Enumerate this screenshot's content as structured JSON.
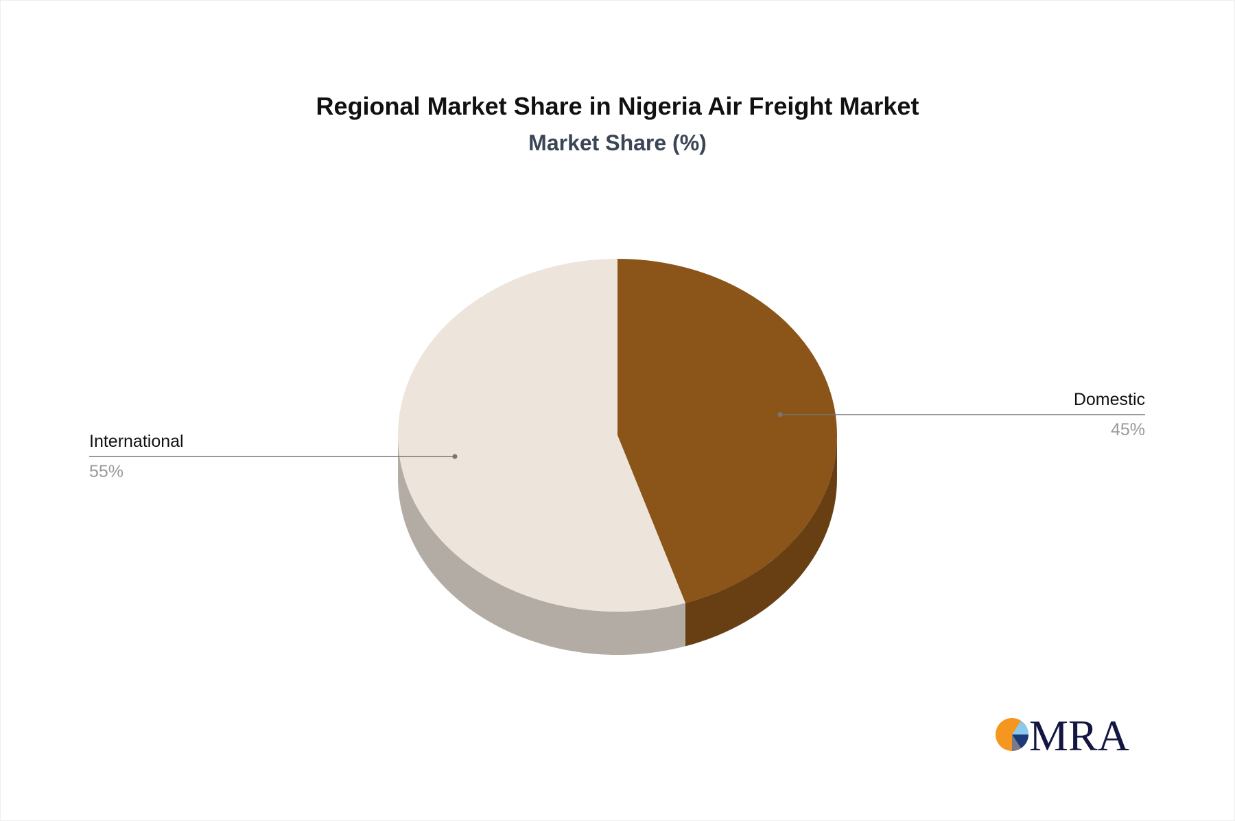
{
  "chart_data": {
    "type": "pie",
    "title": "Regional Market Share in Nigeria Air Freight Market",
    "subtitle": "Market Share (%)",
    "style": "3d",
    "slices": [
      {
        "label": "Domestic",
        "value": 45,
        "value_label": "45%",
        "color": "#8B5419",
        "side_color": "#683F13"
      },
      {
        "label": "International",
        "value": 55,
        "value_label": "55%",
        "color": "#EDE5DC",
        "side_color": "#B3ACA5"
      }
    ]
  },
  "logo": {
    "text": "MRA"
  }
}
